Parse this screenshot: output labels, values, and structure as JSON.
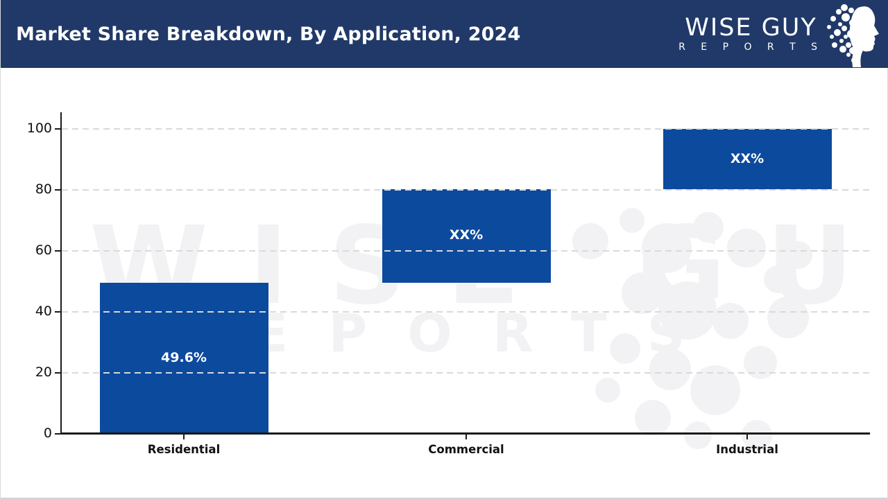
{
  "header": {
    "title": "Market Share Breakdown, By Application, 2024",
    "logo_line1": "WISE GUY",
    "logo_line2": "R E P O R T S"
  },
  "watermark": {
    "line1": "WISE GUY",
    "line2": "REPORTS"
  },
  "colors": {
    "header_bg": "#213968",
    "bar": "#0c4a9e",
    "gridline": "#d9d9d9",
    "axis": "#1a1a1a",
    "bar_label": "#ffffff",
    "watermark": "#f2f2f4"
  },
  "chart_data": {
    "type": "bar",
    "subtype": "waterfall",
    "title": "Market Share Breakdown, By Application, 2024",
    "categories": [
      "Residential",
      "Commercial",
      "Industrial"
    ],
    "segments": [
      {
        "category": "Residential",
        "start": 0,
        "end": 49.6,
        "label": "49.6%"
      },
      {
        "category": "Commercial",
        "start": 49.6,
        "end": 80.2,
        "label": "XX%"
      },
      {
        "category": "Industrial",
        "start": 80.2,
        "end": 100,
        "label": "XX%"
      }
    ],
    "ylim": [
      0,
      100
    ],
    "yticks": [
      0,
      20,
      40,
      60,
      80,
      100
    ],
    "grid": "dashed-horizontal-above-bars",
    "legend": "none",
    "bar_color": "#0c4a9e"
  }
}
